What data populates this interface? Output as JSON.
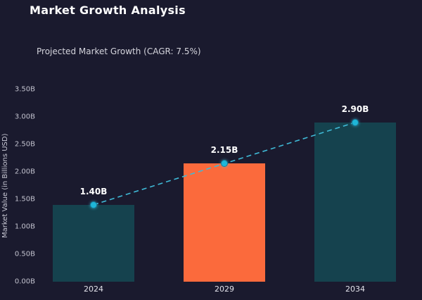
{
  "header": {
    "title": "Market Growth Analysis",
    "subtitle": "Projected Market Growth (CAGR: 7.5%)"
  },
  "chart_data": {
    "type": "bar",
    "title": "Market Growth Analysis",
    "subtitle": "Projected Market Growth (CAGR: 7.5%)",
    "categories": [
      "2024",
      "2029",
      "2034"
    ],
    "values": [
      1.4,
      2.15,
      2.9
    ],
    "value_labels": [
      "1.40B",
      "2.15B",
      "2.90B"
    ],
    "bar_colors": [
      "#15424e",
      "#fb6a3c",
      "#15424e"
    ],
    "line_color": "#3fb9d6",
    "marker_color": "#1fb6d8",
    "ylabel": "Market Value (in Billions USD)",
    "xlabel": "",
    "ylim": [
      0,
      3.5
    ],
    "yticks": [
      "0.00B",
      "0.50B",
      "1.00B",
      "1.50B",
      "2.00B",
      "2.50B",
      "3.00B",
      "3.50B"
    ],
    "grid": false,
    "legend": "none",
    "background_color": "#1a1a2e"
  }
}
